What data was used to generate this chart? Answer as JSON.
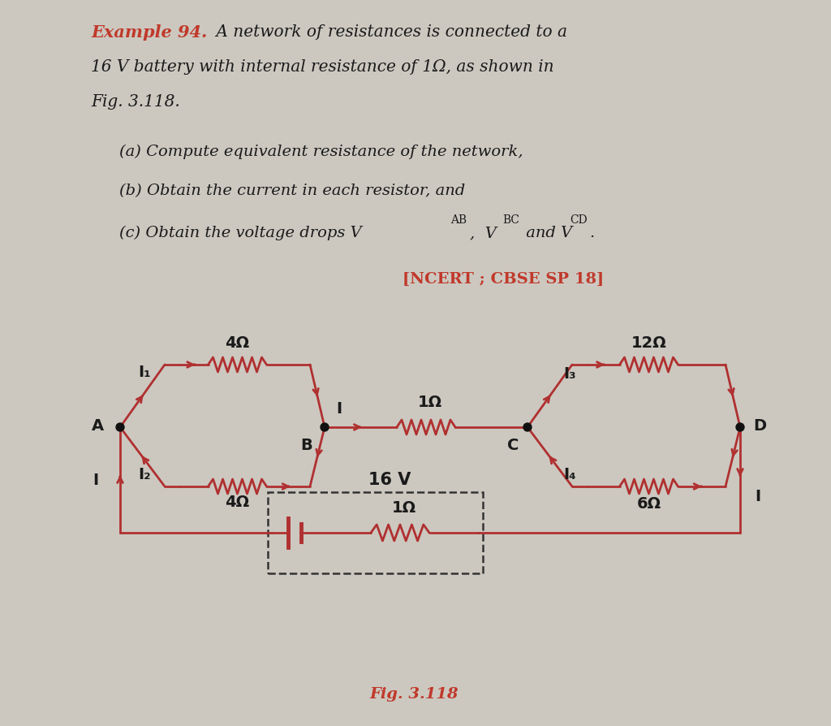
{
  "bg_color": "#ccc8c0",
  "circuit_color": "#b03030",
  "text_color": "#1a1a1a",
  "red_text_color": "#c0392b",
  "title_example": "Example 94.",
  "title_rest": " A network of resistances is connected to a",
  "line2": "16 V battery with internal resistance of 1Ω, as shown in",
  "line3": "Fig. 3.118.",
  "item_a": "(a) Compute equivalent resistance of the network,",
  "item_b": "(b) Obtain the current in each resistor, and",
  "item_c_pre": "(c) Obtain the voltage drops V",
  "ncert": "[NCERT ; CBSE SP 18]",
  "fig_label": "Fig. 3.118",
  "voltage_label": "16 V",
  "battery_r_label": "1Ω",
  "r_bc_label": "1Ω",
  "r1_label": "4Ω",
  "r2_label": "4Ω",
  "r3_label": "12Ω",
  "r4_label": "6Ω",
  "node_A": "A",
  "node_B": "B",
  "node_C": "C",
  "node_D": "D",
  "I_label": "I",
  "I1_label": "I₁",
  "I2_label": "I₂",
  "I3_label": "I₃",
  "I4_label": "I₄",
  "I_bc_label": "I",
  "lw": 2.0
}
